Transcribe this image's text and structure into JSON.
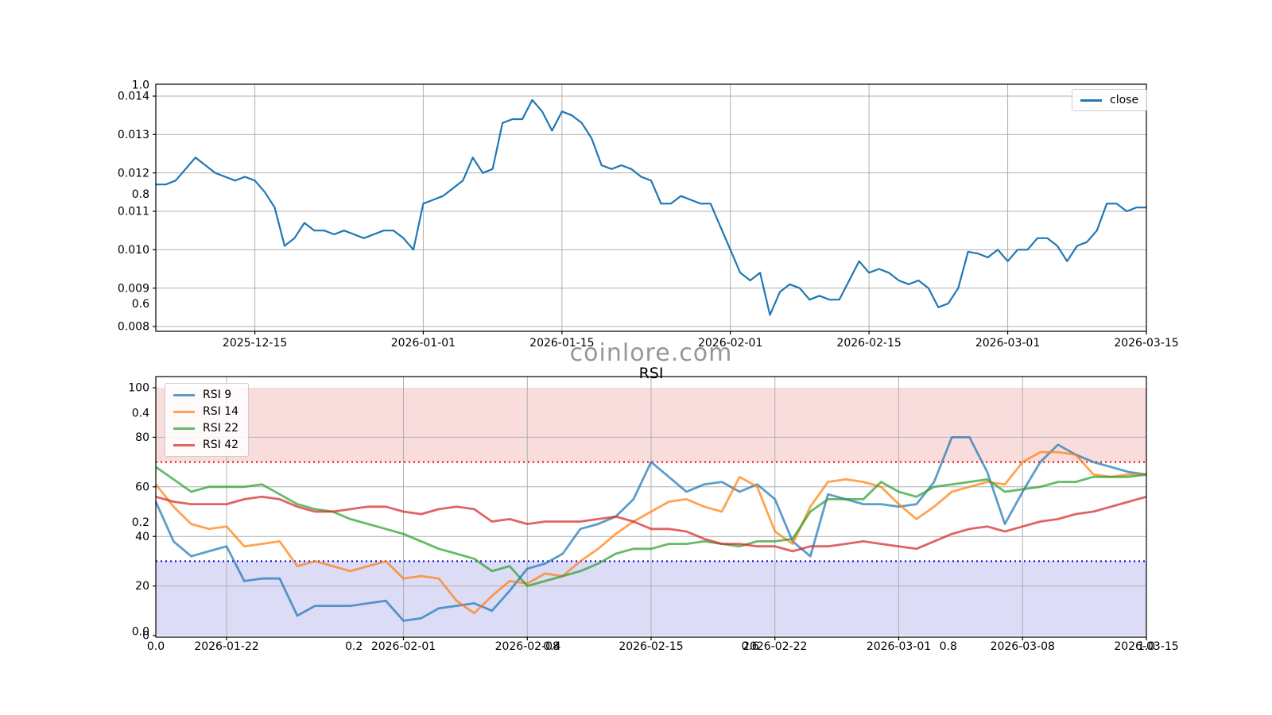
{
  "watermark": "coinlore.com",
  "colors": {
    "close": "#1f77b4",
    "rsi9": "#1f77b4",
    "rsi14": "#ff7f0e",
    "rsi22": "#2ca02c",
    "rsi42": "#d62728",
    "band_overbought": "#f9dddd",
    "band_oversold": "#dcdcf7",
    "line_overbought": "#f00000",
    "line_oversold": "#0000cc",
    "grid": "#b0b0b0",
    "spine": "#000000",
    "text": "#000000",
    "watermark_color": "#969696"
  },
  "secondary_axis": {
    "y_labels": [
      "1.0",
      "0.8",
      "0.6",
      "0.4",
      "0.2",
      "0.0"
    ],
    "x_labels": [
      "0.0",
      "0.2",
      "0.4",
      "0.6",
      "0.8",
      "1.0"
    ]
  },
  "chart_data": [
    {
      "type": "line",
      "name": "price",
      "title": "",
      "grid": true,
      "legend_position": "upper right",
      "start_date": "2025-12-05",
      "end_date": "2026-03-15",
      "interval": "daily",
      "ylim": [
        0.0079,
        0.01435
      ],
      "y_ticks": [
        {
          "v": 0.008,
          "label": "0.008"
        },
        {
          "v": 0.009,
          "label": "0.009"
        },
        {
          "v": 0.01,
          "label": "0.010"
        },
        {
          "v": 0.011,
          "label": "0.011"
        },
        {
          "v": 0.012,
          "label": "0.012"
        },
        {
          "v": 0.013,
          "label": "0.013"
        },
        {
          "v": 0.014,
          "label": "0.014"
        }
      ],
      "x_ticks": [
        {
          "i": 10,
          "label": "2025-12-15"
        },
        {
          "i": 27,
          "label": "2026-01-01"
        },
        {
          "i": 41,
          "label": "2026-01-15"
        },
        {
          "i": 58,
          "label": "2026-02-01"
        },
        {
          "i": 72,
          "label": "2026-02-15"
        },
        {
          "i": 86,
          "label": "2026-03-01"
        },
        {
          "i": 100,
          "label": "2026-03-15"
        }
      ],
      "series": [
        {
          "name": "close",
          "color": "close",
          "values": [
            0.0117,
            0.0117,
            0.0118,
            0.0121,
            0.0124,
            0.0122,
            0.012,
            0.0119,
            0.0118,
            0.0119,
            0.0118,
            0.0115,
            0.0111,
            0.0101,
            0.0103,
            0.0107,
            0.0105,
            0.0105,
            0.0104,
            0.0105,
            0.0104,
            0.0103,
            0.0104,
            0.0105,
            0.0105,
            0.0103,
            0.01,
            0.0112,
            0.0113,
            0.0114,
            0.0116,
            0.0118,
            0.0124,
            0.012,
            0.0121,
            0.0133,
            0.0134,
            0.0134,
            0.0139,
            0.0136,
            0.0131,
            0.0136,
            0.0135,
            0.0133,
            0.0129,
            0.0122,
            0.0121,
            0.0122,
            0.0121,
            0.0119,
            0.0118,
            0.0112,
            0.0112,
            0.0114,
            0.0113,
            0.0112,
            0.0112,
            0.0106,
            0.01,
            0.0094,
            0.0092,
            0.0094,
            0.0083,
            0.0089,
            0.0091,
            0.009,
            0.0087,
            0.0088,
            0.0087,
            0.0087,
            0.0092,
            0.0097,
            0.0094,
            0.0095,
            0.0094,
            0.0092,
            0.0091,
            0.0092,
            0.009,
            0.0085,
            0.0086,
            0.009,
            0.00995,
            0.0099,
            0.0098,
            0.01,
            0.0097,
            0.01,
            0.01,
            0.0103,
            0.0103,
            0.0101,
            0.0097,
            0.0101,
            0.0102,
            0.0105,
            0.0112,
            0.0112,
            0.011,
            0.0111,
            0.0111
          ]
        }
      ]
    },
    {
      "type": "line",
      "name": "rsi",
      "title": "RSI",
      "grid": true,
      "legend_position": "upper left",
      "start_date": "2026-01-18",
      "end_date": "2026-03-15",
      "interval": "daily",
      "ylim": [
        0,
        100
      ],
      "overbought_level": 70,
      "oversold_level": 30,
      "bands": [
        {
          "from": 70,
          "to": 100,
          "color": "band_overbought"
        },
        {
          "from": 0,
          "to": 30,
          "color": "band_oversold"
        }
      ],
      "y_ticks": [
        {
          "v": 0,
          "label": "0"
        },
        {
          "v": 20,
          "label": "20"
        },
        {
          "v": 40,
          "label": "40"
        },
        {
          "v": 60,
          "label": "60"
        },
        {
          "v": 80,
          "label": "80"
        },
        {
          "v": 100,
          "label": "100"
        }
      ],
      "x_ticks": [
        {
          "i": 4,
          "label": "2026-01-22"
        },
        {
          "i": 14,
          "label": "2026-02-01"
        },
        {
          "i": 21,
          "label": "2026-02-08"
        },
        {
          "i": 28,
          "label": "2026-02-15"
        },
        {
          "i": 35,
          "label": "2026-02-22"
        },
        {
          "i": 42,
          "label": "2026-03-01"
        },
        {
          "i": 49,
          "label": "2026-03-08"
        },
        {
          "i": 56,
          "label": "2026-03-15"
        }
      ],
      "series": [
        {
          "name": "RSI 9",
          "color": "rsi9",
          "values": [
            54,
            38,
            32,
            34,
            36,
            22,
            23,
            23,
            8,
            12,
            12,
            12,
            13,
            14,
            6,
            7,
            11,
            12,
            13,
            10,
            18,
            27,
            29,
            33,
            43,
            45,
            48,
            55,
            70,
            64,
            58,
            61,
            62,
            58,
            61,
            55,
            38,
            32,
            57,
            55,
            53,
            53,
            52,
            53,
            62,
            80,
            80,
            66,
            45,
            58,
            70,
            77,
            73,
            70,
            68,
            66,
            65
          ]
        },
        {
          "name": "RSI 14",
          "color": "rsi14",
          "values": [
            61,
            52,
            45,
            43,
            44,
            36,
            37,
            38,
            28,
            30,
            28,
            26,
            28,
            30,
            23,
            24,
            23,
            14,
            9,
            16,
            22,
            21,
            25,
            24,
            30,
            35,
            41,
            46,
            50,
            54,
            55,
            52,
            50,
            64,
            60,
            42,
            37,
            52,
            62,
            63,
            62,
            60,
            53,
            47,
            52,
            58,
            60,
            62,
            61,
            70,
            74,
            74,
            73,
            65,
            64,
            65,
            65
          ]
        },
        {
          "name": "RSI 22",
          "color": "rsi22",
          "values": [
            68,
            63,
            58,
            60,
            60,
            60,
            61,
            57,
            53,
            51,
            50,
            47,
            45,
            43,
            41,
            38,
            35,
            33,
            31,
            26,
            28,
            20,
            22,
            24,
            26,
            29,
            33,
            35,
            35,
            37,
            37,
            38,
            37,
            36,
            38,
            38,
            39,
            50,
            55,
            55,
            55,
            62,
            58,
            56,
            60,
            61,
            62,
            63,
            58,
            59,
            60,
            62,
            62,
            64,
            64,
            64,
            65
          ]
        },
        {
          "name": "RSI 42",
          "color": "rsi42",
          "values": [
            56,
            54,
            53,
            53,
            53,
            55,
            56,
            55,
            52,
            50,
            50,
            51,
            52,
            52,
            50,
            49,
            51,
            52,
            51,
            46,
            47,
            45,
            46,
            46,
            46,
            47,
            48,
            46,
            43,
            43,
            42,
            39,
            37,
            37,
            36,
            36,
            34,
            36,
            36,
            37,
            38,
            37,
            36,
            35,
            38,
            41,
            43,
            44,
            42,
            44,
            46,
            47,
            49,
            50,
            52,
            54,
            56
          ]
        }
      ]
    }
  ]
}
